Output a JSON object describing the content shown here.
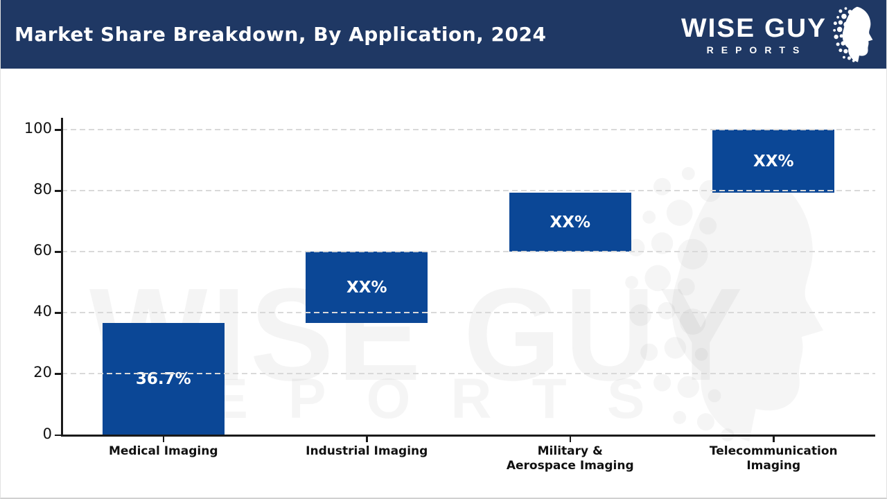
{
  "header": {
    "title": "Market Share Breakdown, By Application, 2024",
    "bg_color": "#1F3864",
    "logo": {
      "line1": "WISE GUY",
      "line2": "REPORTS"
    }
  },
  "watermark": {
    "line1": "WISE GUY",
    "line2": "REPORTS"
  },
  "chart_data": {
    "type": "bar",
    "subtype": "waterfall",
    "title": "Market Share Breakdown, By Application, 2024",
    "categories": [
      "Medical Imaging",
      "Industrial Imaging",
      "Military &\nAerospace Imaging",
      "Telecommunication\nImaging"
    ],
    "segments": [
      {
        "category": "Medical Imaging",
        "start": 0,
        "end": 36.7,
        "label": "36.7%"
      },
      {
        "category": "Industrial Imaging",
        "start": 36.7,
        "end": 60,
        "label": "XX%"
      },
      {
        "category": "Military & Aerospace Imaging",
        "start": 60,
        "end": 79.3,
        "label": "XX%"
      },
      {
        "category": "Telecommunication Imaging",
        "start": 79.3,
        "end": 100,
        "label": "XX%"
      }
    ],
    "y_ticks": [
      0,
      20,
      40,
      60,
      80,
      100
    ],
    "ylim": [
      0,
      104
    ],
    "bar_color": "#0B4796",
    "grid": true,
    "gridline_color": "#d9d9d9",
    "legend": "none",
    "xlabel": "",
    "ylabel": ""
  }
}
